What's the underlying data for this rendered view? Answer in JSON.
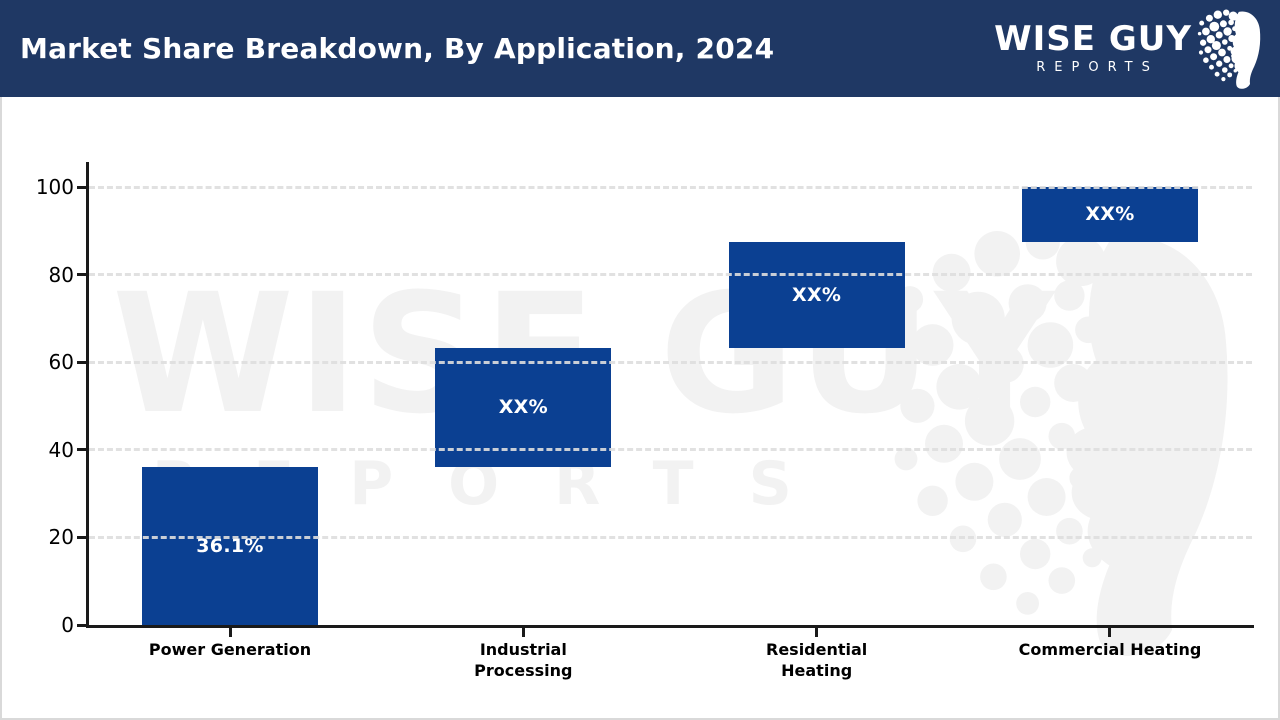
{
  "header": {
    "title": "Market Share Breakdown, By Application, 2024",
    "logo": {
      "line1": "WISE GUY",
      "line2": "REPORTS"
    },
    "bg_color": "#1f3864"
  },
  "watermark": {
    "line1": "WISE GUY",
    "line2": "REPORTS"
  },
  "chart_data": {
    "type": "bar",
    "subtype": "waterfall",
    "title": "Market Share Breakdown, By Application, 2024",
    "categories": [
      "Power Generation",
      "Industrial\nProcessing",
      "Residential\nHeating",
      "Commercial Heating"
    ],
    "segments": [
      {
        "category": "Power Generation",
        "start": 0,
        "end": 36.1,
        "value": 36.1,
        "label": "36.1%"
      },
      {
        "category": "Industrial Processing",
        "start": 36.1,
        "end": 63.3,
        "value": 27.2,
        "label": "XX%"
      },
      {
        "category": "Residential Heating",
        "start": 63.3,
        "end": 87.5,
        "value": 24.2,
        "label": "XX%"
      },
      {
        "category": "Commercial Heating",
        "start": 87.5,
        "end": 100,
        "value": 12.5,
        "label": "XX%"
      }
    ],
    "y_ticks": [
      0,
      20,
      40,
      60,
      80,
      100
    ],
    "ylim": [
      0,
      100
    ],
    "xlabel": "",
    "ylabel": "",
    "grid": true,
    "grid_style": "dashed",
    "legend": "none",
    "bar_color": "#0b4092",
    "bar_label_color": "#ffffff",
    "axis_color": "#1a1a1a"
  }
}
